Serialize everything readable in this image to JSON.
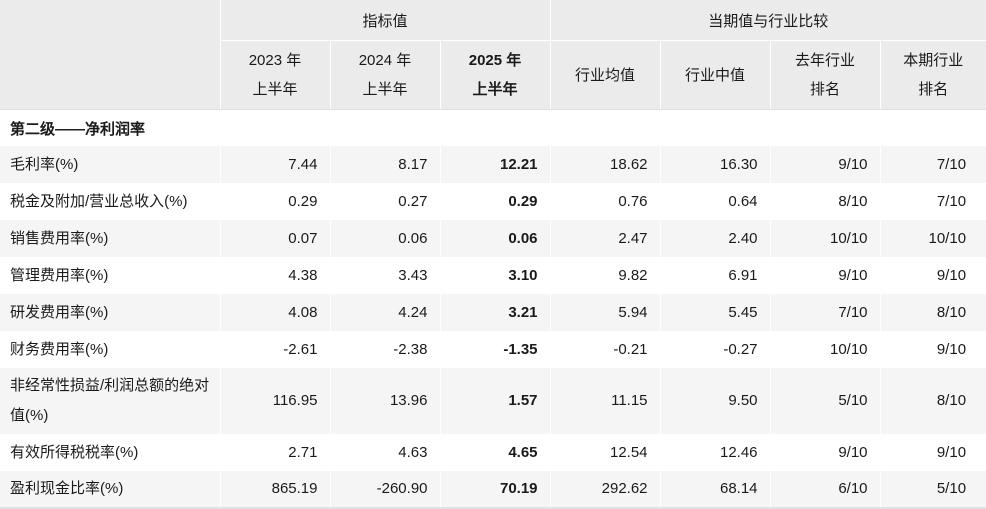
{
  "chart_data": {
    "type": "table",
    "column_groups": [
      {
        "label": "指标值"
      },
      {
        "label": "当期值与行业比较"
      }
    ],
    "columns": [
      {
        "line1": "2023 年",
        "line2": "上半年",
        "bold": false
      },
      {
        "line1": "2024 年",
        "line2": "上半年",
        "bold": false
      },
      {
        "line1": "2025 年",
        "line2": "上半年",
        "bold": true
      },
      {
        "line1": "行业均值",
        "line2": "",
        "bold": false
      },
      {
        "line1": "行业中值",
        "line2": "",
        "bold": false
      },
      {
        "line1": "去年行业",
        "line2": "排名",
        "bold": false
      },
      {
        "line1": "本期行业",
        "line2": "排名",
        "bold": false
      }
    ],
    "section_title": "第二级——净利润率",
    "rows": [
      {
        "label": "毛利率(%)",
        "values": [
          "7.44",
          "8.17",
          "12.21",
          "18.62",
          "16.30",
          "9/10",
          "7/10"
        ]
      },
      {
        "label": "税金及附加/营业总收入(%)",
        "values": [
          "0.29",
          "0.27",
          "0.29",
          "0.76",
          "0.64",
          "8/10",
          "7/10"
        ]
      },
      {
        "label": "销售费用率(%)",
        "values": [
          "0.07",
          "0.06",
          "0.06",
          "2.47",
          "2.40",
          "10/10",
          "10/10"
        ]
      },
      {
        "label": "管理费用率(%)",
        "values": [
          "4.38",
          "3.43",
          "3.10",
          "9.82",
          "6.91",
          "9/10",
          "9/10"
        ]
      },
      {
        "label": "研发费用率(%)",
        "values": [
          "4.08",
          "4.24",
          "3.21",
          "5.94",
          "5.45",
          "7/10",
          "8/10"
        ]
      },
      {
        "label": "财务费用率(%)",
        "values": [
          "-2.61",
          "-2.38",
          "-1.35",
          "-0.21",
          "-0.27",
          "10/10",
          "9/10"
        ]
      },
      {
        "label": "非经常性损益/利润总额的绝对值(%)",
        "values": [
          "116.95",
          "13.96",
          "1.57",
          "11.15",
          "9.50",
          "5/10",
          "8/10"
        ]
      },
      {
        "label": "有效所得税税率(%)",
        "values": [
          "2.71",
          "4.63",
          "4.65",
          "12.54",
          "12.46",
          "9/10",
          "9/10"
        ]
      },
      {
        "label": "盈利现金比率(%)",
        "values": [
          "865.19",
          "-260.90",
          "70.19",
          "292.62",
          "68.14",
          "6/10",
          "5/10"
        ]
      }
    ]
  },
  "colors": {
    "header_bg": "#ebebeb",
    "stripe_bg": "#f5f5f5",
    "row_bg": "#ffffff",
    "text": "#1a1a1a",
    "header_border": "#e0e0e0",
    "separator": "#ffffff"
  }
}
